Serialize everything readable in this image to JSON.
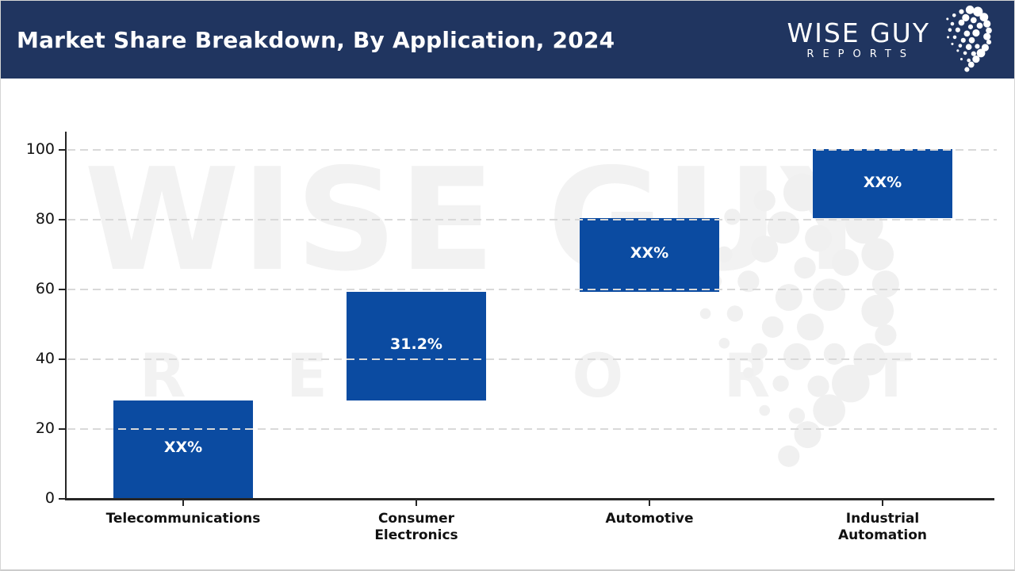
{
  "header": {
    "title": "Market Share Breakdown, By Application, 2024",
    "logo": {
      "line1": "WISE GUY",
      "line2": "REPORTS"
    }
  },
  "watermark": {
    "line1": "WISE GUY",
    "line2": "R E P O R T S"
  },
  "colors": {
    "header_bg": "#203560",
    "bar": "#0b4ba1",
    "axis": "#262626",
    "grid": "#d9d9d9",
    "tick_text": "#111111",
    "bar_label_text": "#ffffff",
    "watermark": "#f2f2f2"
  },
  "chart_data": {
    "type": "bar",
    "subtype": "waterfall",
    "title": "Market Share Breakdown, By Application, 2024",
    "xlabel": "",
    "ylabel": "",
    "ylim": [
      0,
      105
    ],
    "yticks": [
      0,
      20,
      40,
      60,
      80,
      100
    ],
    "grid": "horizontal-dashed",
    "legend": "none",
    "categories": [
      "Telecommunications",
      "Consumer Electronics",
      "Automotive",
      "Industrial Automation"
    ],
    "category_lines": [
      [
        "Telecommunications"
      ],
      [
        "Consumer",
        "Electronics"
      ],
      [
        "Automotive"
      ],
      [
        "Industrial",
        "Automation"
      ]
    ],
    "segments": [
      {
        "category": "Telecommunications",
        "start": 0,
        "end": 28,
        "value_label": "XX%"
      },
      {
        "category": "Consumer Electronics",
        "start": 28,
        "end": 59.2,
        "value_label": "31.2%"
      },
      {
        "category": "Automotive",
        "start": 59.2,
        "end": 80.2,
        "value_label": "XX%"
      },
      {
        "category": "Industrial Automation",
        "start": 80.2,
        "end": 100,
        "value_label": "XX%"
      }
    ]
  }
}
